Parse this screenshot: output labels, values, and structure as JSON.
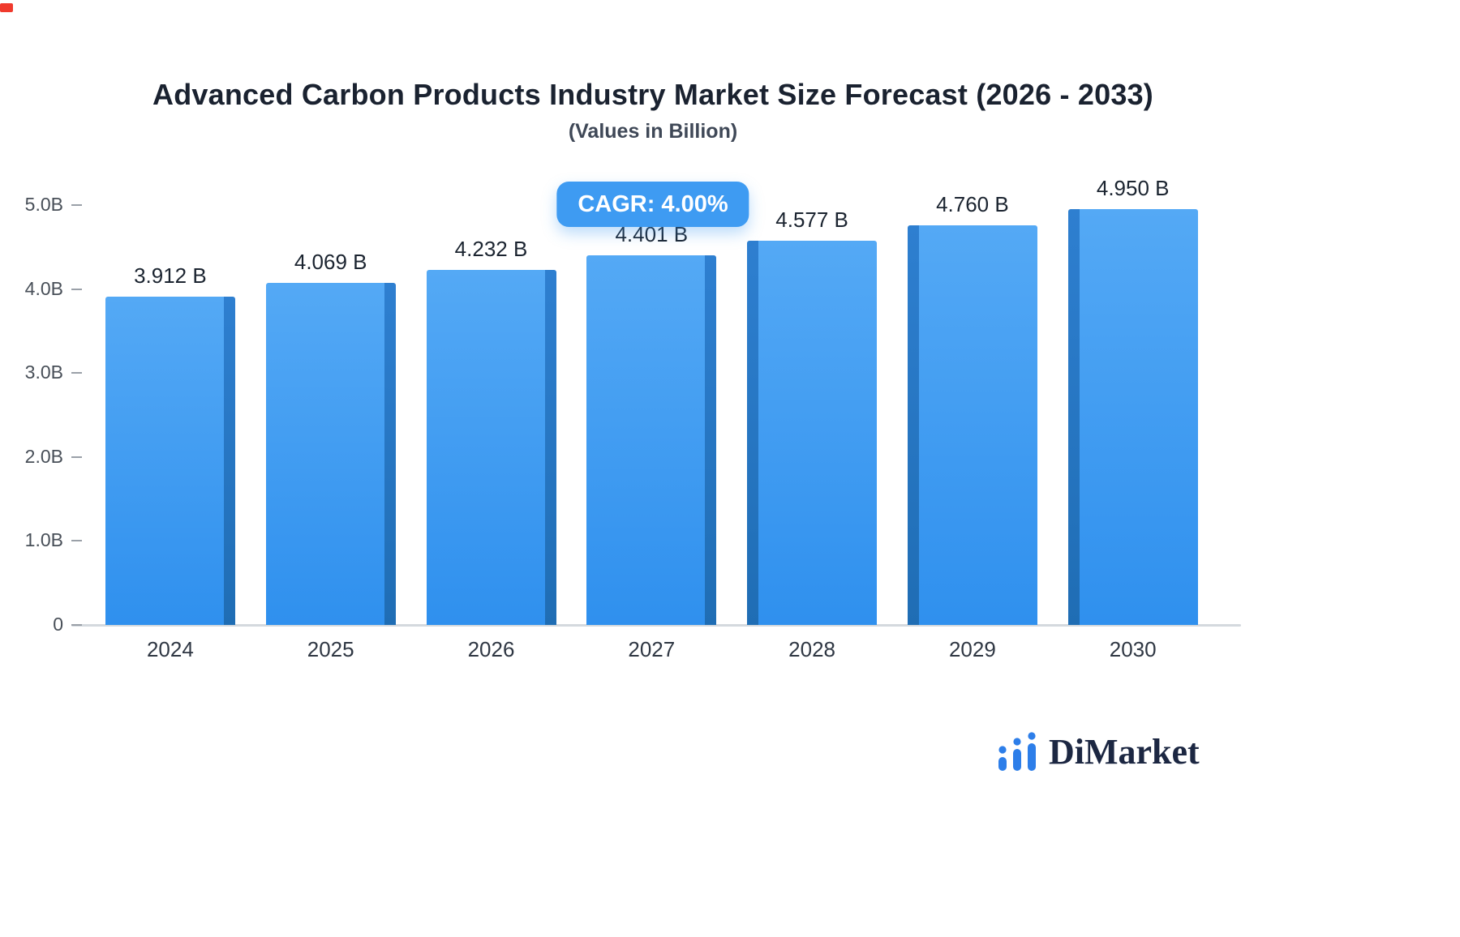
{
  "chart_data": {
    "type": "bar",
    "title": "Advanced Carbon Products Industry Market Size Forecast (2026 - 2033)",
    "subtitle": "(Values in Billion)",
    "categories": [
      "2024",
      "2025",
      "2026",
      "2027",
      "2028",
      "2029",
      "2030"
    ],
    "values": [
      3.912,
      4.069,
      4.232,
      4.401,
      4.577,
      4.76,
      4.95
    ],
    "value_labels": [
      "3.912 B",
      "4.069 B",
      "4.232 B",
      "4.401 B",
      "4.577 B",
      "4.760 B",
      "4.950 B"
    ],
    "xlabel": "",
    "ylabel": "",
    "ylim": [
      0,
      5.0
    ],
    "yticks": [
      0,
      1.0,
      2.0,
      3.0,
      4.0,
      5.0
    ],
    "ytick_labels": [
      "0",
      "1.0B",
      "2.0B",
      "3.0B",
      "4.0B",
      "5.0B"
    ],
    "grid": false,
    "legend": "none",
    "annotation": "CAGR: 4.00%",
    "colors": {
      "bar_top": "#54A9F5",
      "bar_bottom": "#2F90EE",
      "bar_side_top": "#2E7FD0",
      "bar_side_bottom": "#1F6DB4",
      "badge_bg": "#3E9BF2",
      "axis_line": "#D4D9DE"
    }
  },
  "branding": {
    "logo_text": "DiMarket",
    "logo_icon": "bar-chart-dots-icon",
    "logo_icon_color": "#2D7EE9"
  }
}
